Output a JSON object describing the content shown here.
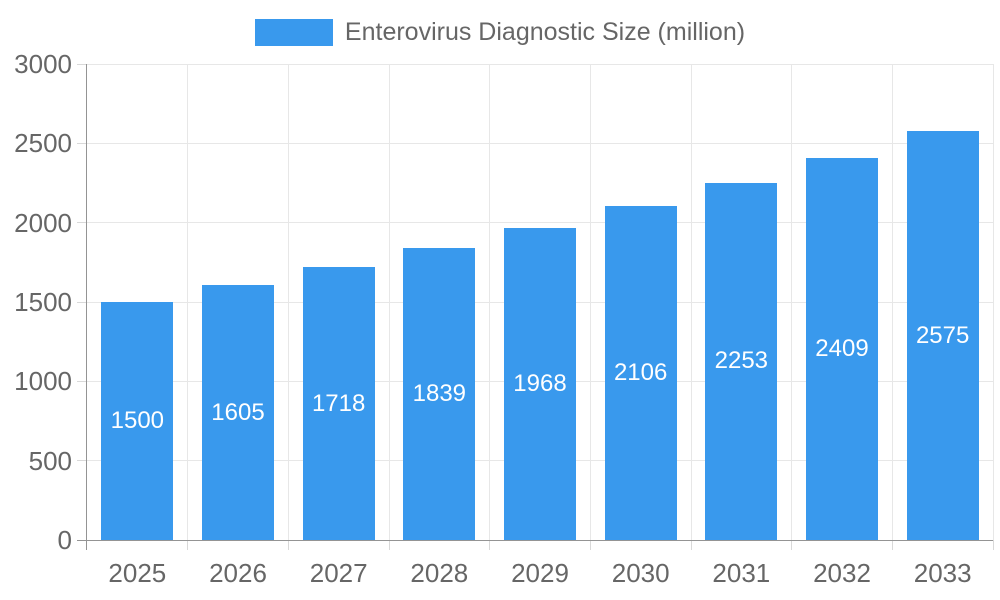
{
  "colors": {
    "bar": "#3999ED",
    "grid": "#E7E7E7",
    "tick": "#D9D9D9",
    "axis": "#949494",
    "text": "#666666",
    "value_label": "#FFFFFF",
    "background": "#FFFFFF"
  },
  "legend": {
    "label": "Enterovirus Diagnostic Size (million)"
  },
  "chart_data": {
    "type": "bar",
    "title": "Enterovirus Diagnostic Size (million)",
    "categories": [
      "2025",
      "2026",
      "2027",
      "2028",
      "2029",
      "2030",
      "2031",
      "2032",
      "2033"
    ],
    "values": [
      1500,
      1605,
      1718,
      1839,
      1968,
      2106,
      2253,
      2409,
      2575
    ],
    "series": [
      {
        "name": "Enterovirus Diagnostic Size (million)",
        "values": [
          1500,
          1605,
          1718,
          1839,
          1968,
          2106,
          2253,
          2409,
          2575
        ]
      }
    ],
    "yticks": [
      0,
      500,
      1000,
      1500,
      2000,
      2500,
      3000
    ],
    "ylim": [
      0,
      3000
    ],
    "xlabel": "",
    "ylabel": "",
    "legend_position": "top",
    "grid": true,
    "value_labels_position": "inside-center"
  }
}
